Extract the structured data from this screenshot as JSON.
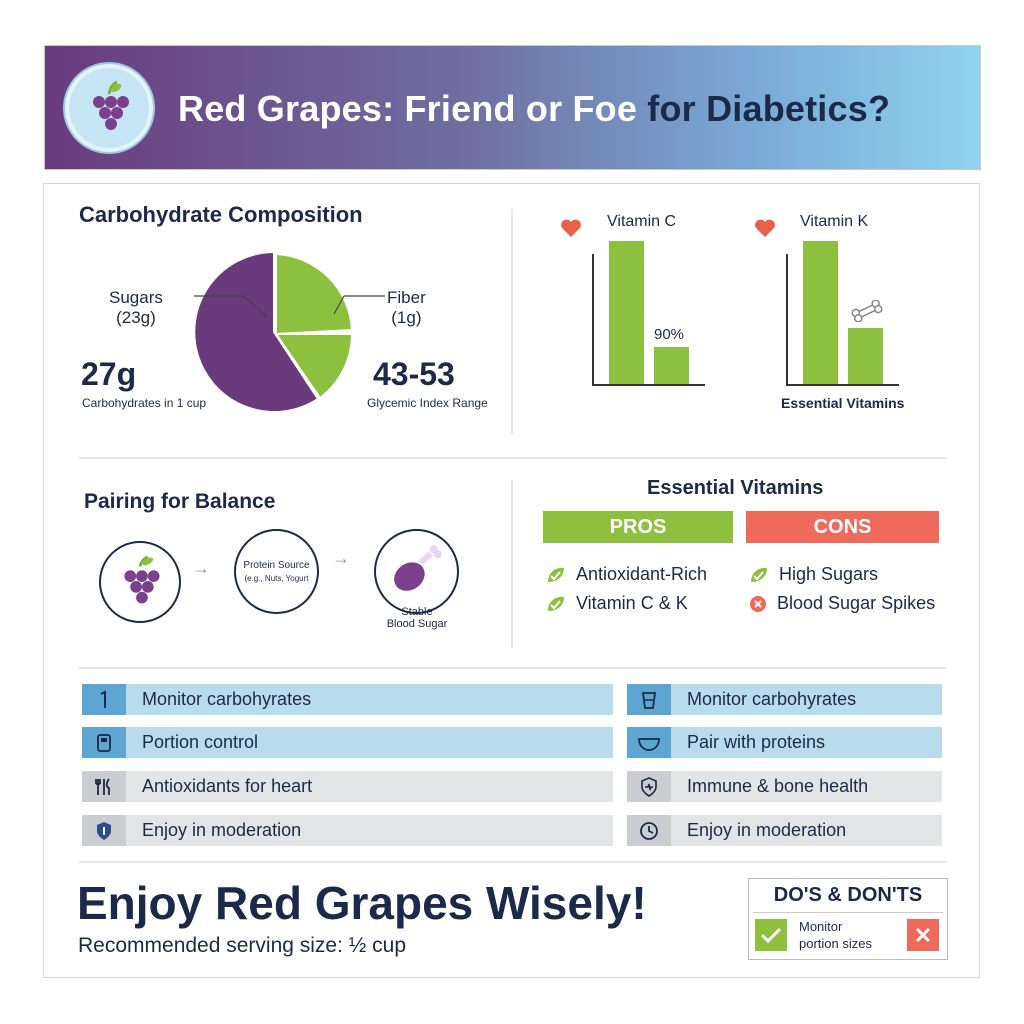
{
  "header": {
    "title_part1": "Red Grapes: Friend or Foe ",
    "title_part2": "for Diabetics?",
    "logo_icon": "grapes-icon"
  },
  "carbs": {
    "title": "Carbohydrate Composition",
    "sugars_label": "Sugars",
    "sugars_value": "(23g)",
    "fiber_label": "Fiber",
    "fiber_value": "(1g)",
    "total": "27g",
    "total_caption": "Carbohydrates in 1 cup",
    "gi": "43-53",
    "gi_caption": "Glycemic Index Range",
    "colors": {
      "sugars": "#6a3a7c",
      "fiber": "#8dc03f"
    }
  },
  "vitamins": {
    "vitamin_c_label": "Vitamin C",
    "vitamin_k_label": "Vitamin K",
    "vitamin_c_pct": "90%",
    "caption": "Essential Vitamins",
    "icons": [
      "heart-icon",
      "heart-icon",
      "bone-icon"
    ]
  },
  "pairing": {
    "title": "Pairing for Balance",
    "protein_title": "Protein Source",
    "protein_examples": "(e.g., Nuts, Yogurt",
    "result_line1": "Stable",
    "result_line2": "Blood Sugar"
  },
  "proscons": {
    "title": "Essential Vitamins",
    "pros_label": "PROS",
    "cons_label": "CONS",
    "pros": [
      "Antioxidant-Rich",
      "Vitamin C & K"
    ],
    "cons": [
      "High Sugars",
      "Blood Sugar Spikes"
    ],
    "colors": {
      "pros": "#8dc03f",
      "cons": "#ee6b5b"
    }
  },
  "tips_left": [
    {
      "label": "Monitor carbohyrates",
      "icon": "number-one-icon"
    },
    {
      "label": "Portion control",
      "icon": "glucose-meter-icon"
    },
    {
      "label": "Antioxidants for heart",
      "icon": "fork-knife-icon"
    },
    {
      "label": "Enjoy in moderation",
      "icon": "shield-icon"
    }
  ],
  "tips_right": [
    {
      "label": "Monitor carbohyrates",
      "icon": "cup-icon"
    },
    {
      "label": "Pair with proteins",
      "icon": "bowl-icon"
    },
    {
      "label": "Immune & bone health",
      "icon": "heart-shield-icon"
    },
    {
      "label": "Enjoy in moderation",
      "icon": "clock-icon"
    }
  ],
  "footer": {
    "headline": "Enjoy Red Grapes Wisely!",
    "serving": "Recommended serving size: ½ cup",
    "dos_title": "DO'S & DON'TS",
    "dos_text_line1": "Monitor",
    "dos_text_line2": "portion sizes"
  }
}
